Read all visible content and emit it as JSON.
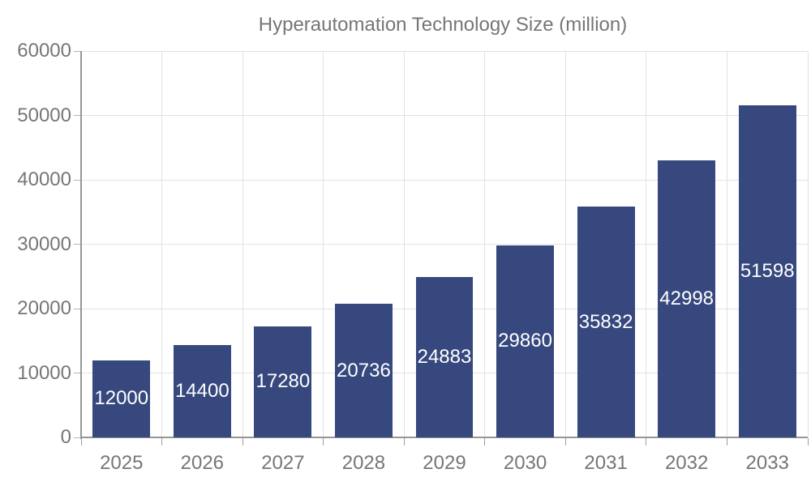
{
  "legend": {
    "label": "Hyperautomation Technology Size (million)"
  },
  "colors": {
    "bar": "#36487e",
    "gridline": "#e2e2e2",
    "axis": "#969696",
    "tick_text": "#767676",
    "value_label": "#ffffff",
    "background": "#ffffff"
  },
  "chart_data": {
    "type": "bar",
    "title": "Hyperautomation Technology Size (million)",
    "categories": [
      "2025",
      "2026",
      "2027",
      "2028",
      "2029",
      "2030",
      "2031",
      "2032",
      "2033"
    ],
    "values": [
      12000,
      14400,
      17280,
      20736,
      24883,
      29860,
      35832,
      42998,
      51598
    ],
    "series": [
      {
        "name": "Hyperautomation Technology Size (million)",
        "values": [
          12000,
          14400,
          17280,
          20736,
          24883,
          29860,
          35832,
          42998,
          51598
        ]
      }
    ],
    "xlabel": "",
    "ylabel": "",
    "ylim": [
      0,
      60000
    ],
    "y_ticks": [
      0,
      10000,
      20000,
      30000,
      40000,
      50000,
      60000
    ],
    "grid": true,
    "legend_position": "top-center",
    "value_label_position": "inside-center"
  }
}
